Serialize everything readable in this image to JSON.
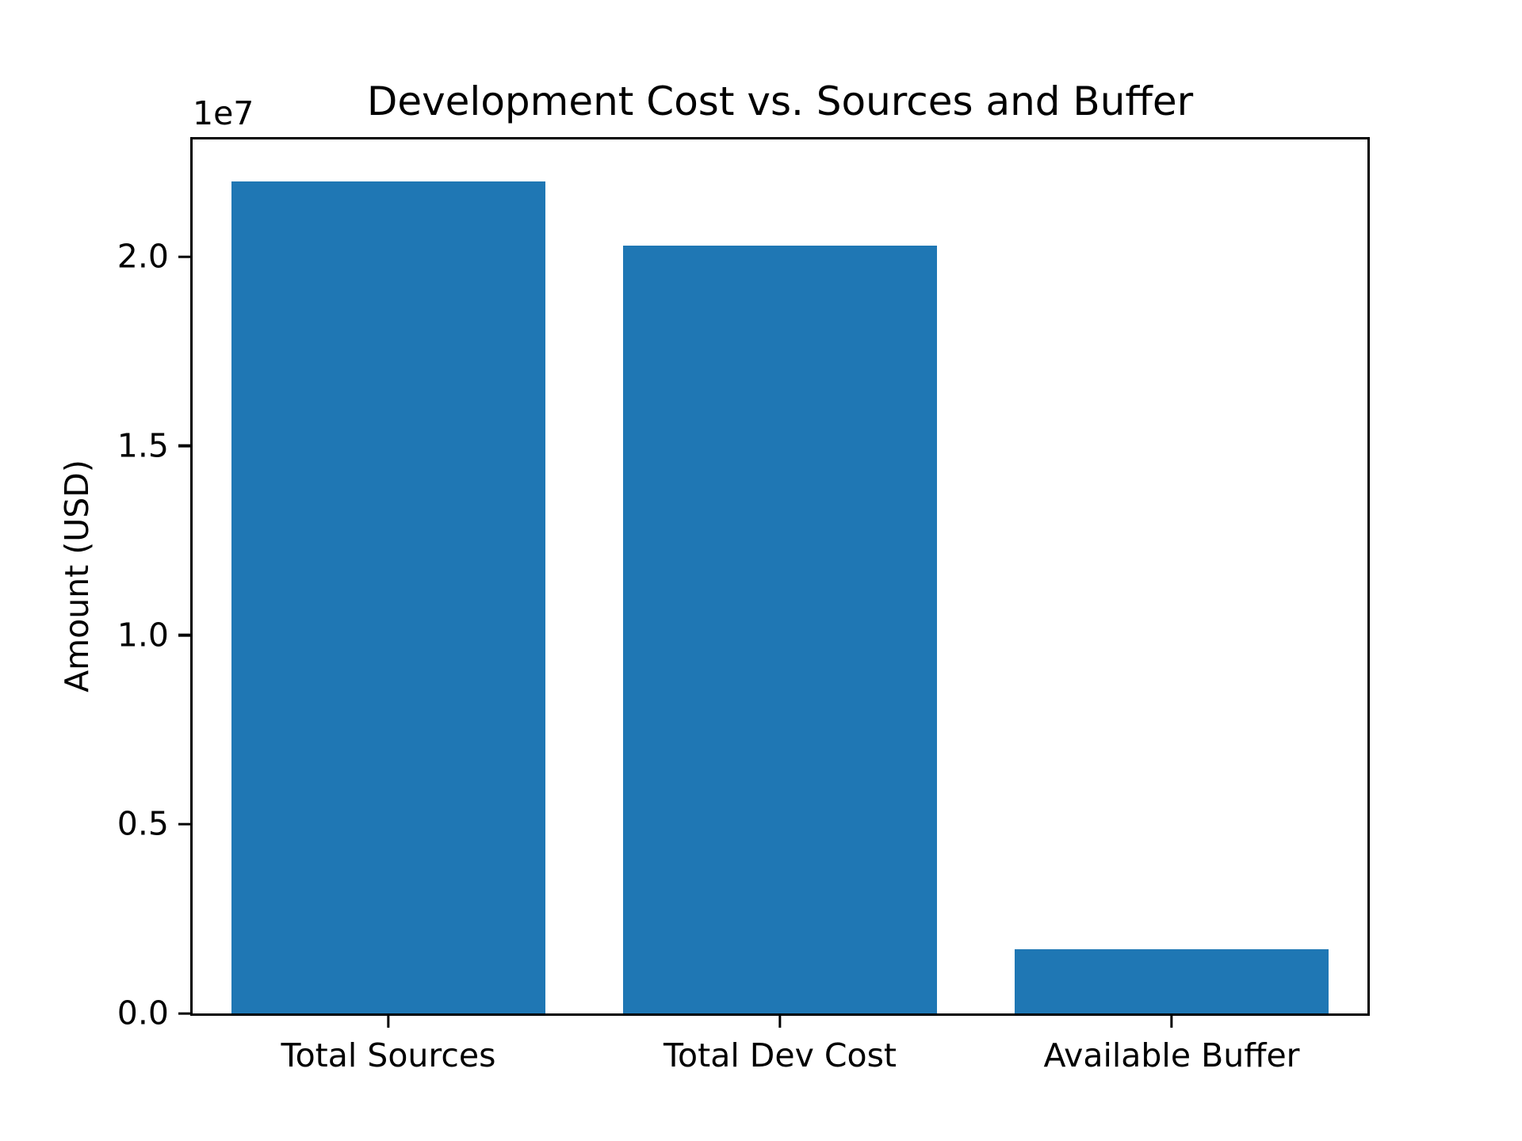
{
  "figure": {
    "background": "#ffffff",
    "spine_color": "#000000"
  },
  "chart_data": {
    "type": "bar",
    "title": "Development Cost vs. Sources and Buffer",
    "xlabel": "",
    "ylabel": "Amount (USD)",
    "y_offset_label": "1e7",
    "categories": [
      "Total Sources",
      "Total Dev Cost",
      "Available Buffer"
    ],
    "values": [
      22000000,
      20300000,
      1700000
    ],
    "bar_color": "#1f77b4",
    "bar_width_fraction": 0.8,
    "ylim": [
      0,
      23100000
    ],
    "yticks": [
      0,
      5000000,
      10000000,
      15000000,
      20000000
    ],
    "ytick_labels": [
      "0.0",
      "0.5",
      "1.0",
      "1.5",
      "2.0"
    ],
    "grid": false,
    "legend": null
  }
}
